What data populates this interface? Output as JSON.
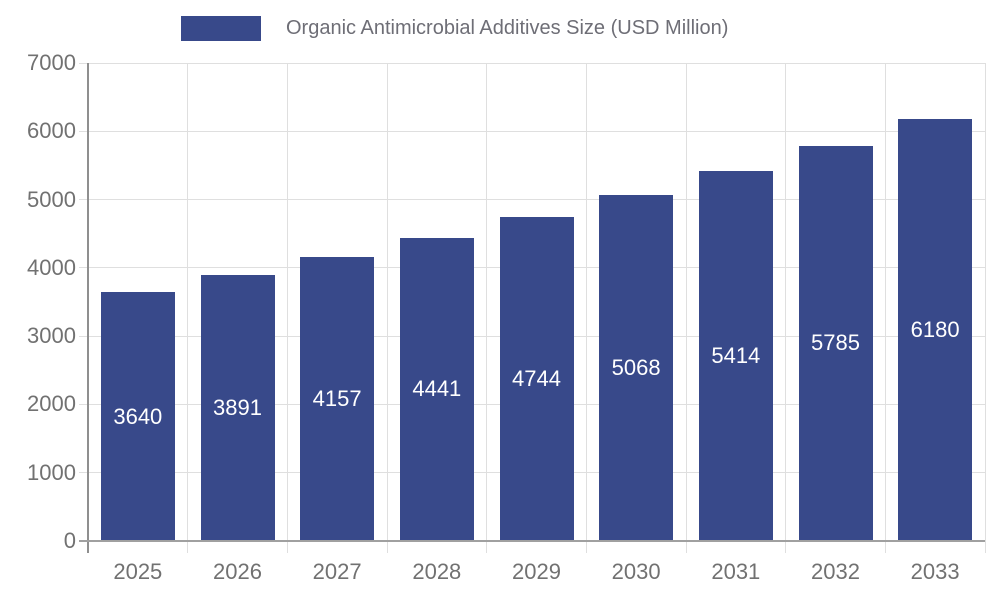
{
  "legend": {
    "label": "Organic Antimicrobial Additives Size (USD Million)"
  },
  "chart_data": {
    "type": "bar",
    "title": "Organic Antimicrobial Additives Size (USD Million)",
    "series_name": "Organic Antimicrobial Additives Size (USD Million)",
    "categories": [
      "2025",
      "2026",
      "2027",
      "2028",
      "2029",
      "2030",
      "2031",
      "2032",
      "2033"
    ],
    "values": [
      3640,
      3891,
      4157,
      4441,
      4744,
      5068,
      5414,
      5785,
      6180
    ],
    "bar_labels": [
      "3640",
      "3891",
      "4157",
      "4441",
      "4744",
      "5068",
      "5414",
      "5785",
      "6180"
    ],
    "xlabel": "",
    "ylabel": "",
    "ylim": [
      0,
      7000
    ],
    "ytick_interval": 1000,
    "ytick_labels": [
      "0",
      "1000",
      "2000",
      "3000",
      "4000",
      "5000",
      "6000",
      "7000"
    ],
    "grid": true,
    "legend_position": "top",
    "colors": {
      "bar": "#38498A",
      "grid": "#DFDFDF",
      "y_axis": "#8F8F8F",
      "x_axis": "#A0A0A0",
      "tick_label": "#717171",
      "legend_text": "#6E6E76",
      "bar_value_label": "#FFFFFF",
      "background": "#FFFFFF"
    }
  }
}
